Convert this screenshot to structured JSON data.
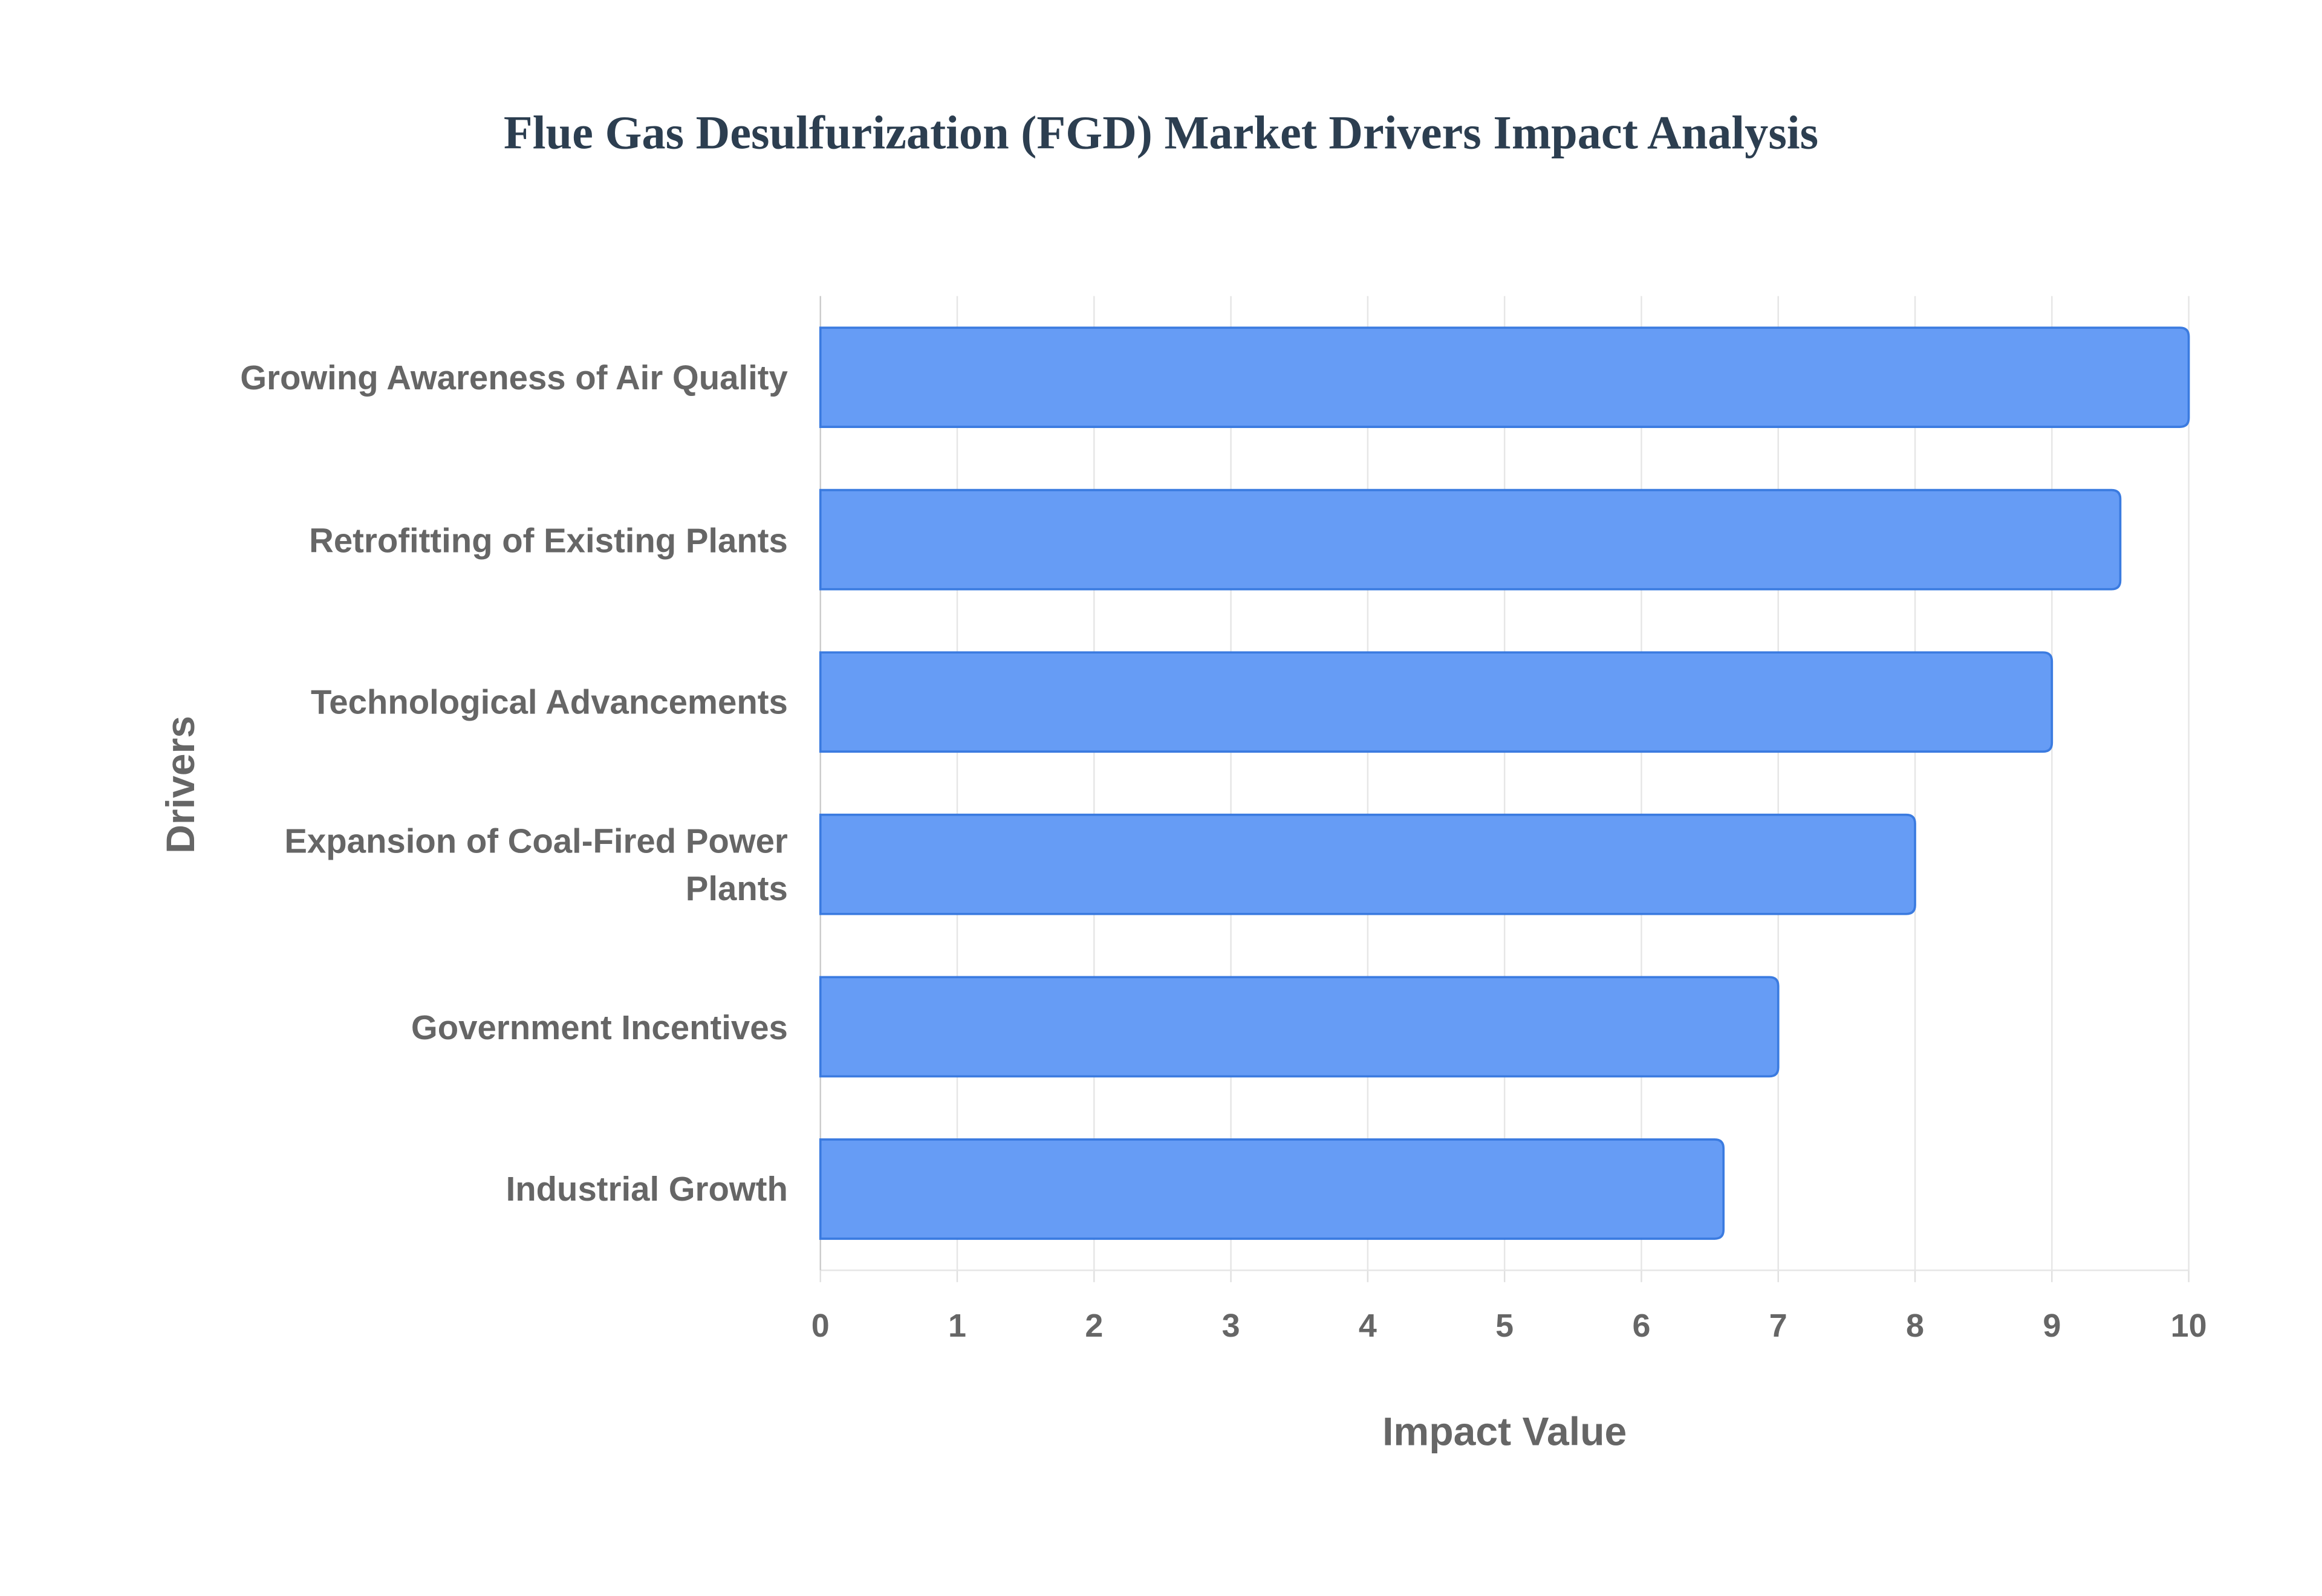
{
  "chart_data": {
    "type": "bar",
    "orientation": "horizontal",
    "title": "Flue Gas Desulfurization (FGD) Market Drivers Impact Analysis",
    "x_label": "Impact Value",
    "y_label": "Drivers",
    "categories": [
      "Growing Awareness of Air Quality",
      "Retrofitting of Existing Plants",
      "Technological Advancements",
      "Expansion of Coal-Fired Power Plants",
      "Government Incentives",
      "Industrial Growth"
    ],
    "values": [
      10,
      9.5,
      9,
      8,
      7,
      6.6
    ],
    "color": "#6199f5",
    "xlim": [
      0,
      10
    ],
    "xticks": [
      0,
      1,
      2,
      3,
      4,
      5,
      6,
      7,
      8,
      9,
      10
    ],
    "grid": true
  }
}
